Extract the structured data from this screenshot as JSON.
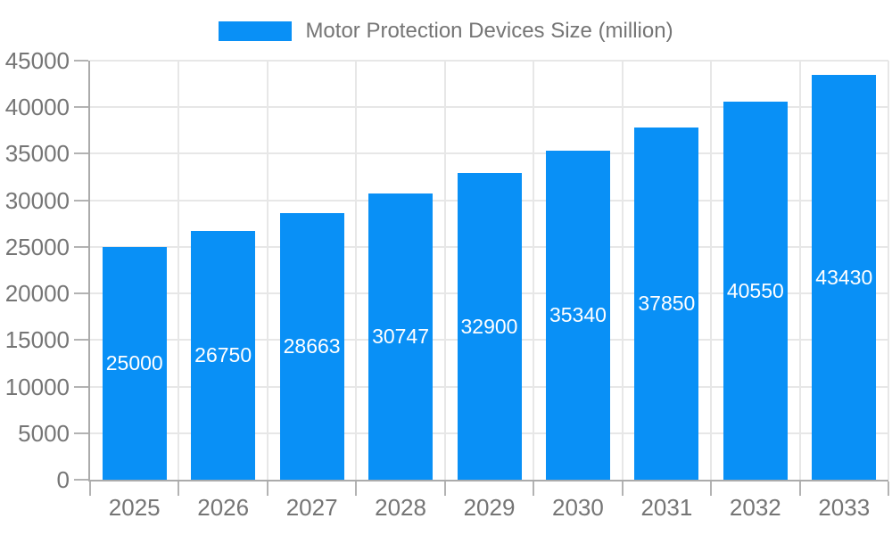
{
  "legend": {
    "label": "Motor Protection Devices Size (million)"
  },
  "chart_data": {
    "type": "bar",
    "title": "Motor Protection Devices Size (million)",
    "categories": [
      "2025",
      "2026",
      "2027",
      "2028",
      "2029",
      "2030",
      "2031",
      "2032",
      "2033"
    ],
    "values": [
      25000,
      26750,
      28663,
      30747,
      32900,
      35340,
      37850,
      40550,
      43430
    ],
    "value_labels": [
      "25000",
      "26750",
      "28663",
      "30747",
      "32900",
      "35340",
      "37850",
      "40550",
      "43430"
    ],
    "xlabel": "",
    "ylabel": "",
    "ylim": [
      0,
      45000
    ],
    "ytick_step": 5000,
    "ytick_labels": [
      "0",
      "5000",
      "10000",
      "15000",
      "20000",
      "25000",
      "30000",
      "35000",
      "40000",
      "45000"
    ],
    "grid": "horizontal-and-vertical",
    "legend_position": "top-center",
    "colors": {
      "bar": "#0990f6",
      "bar_label": "#ffffff",
      "axis": "#ababab",
      "tick": "#b3b3b3",
      "gridline": "#e7e7e7",
      "text": "#757575",
      "background": "#ffffff"
    }
  }
}
